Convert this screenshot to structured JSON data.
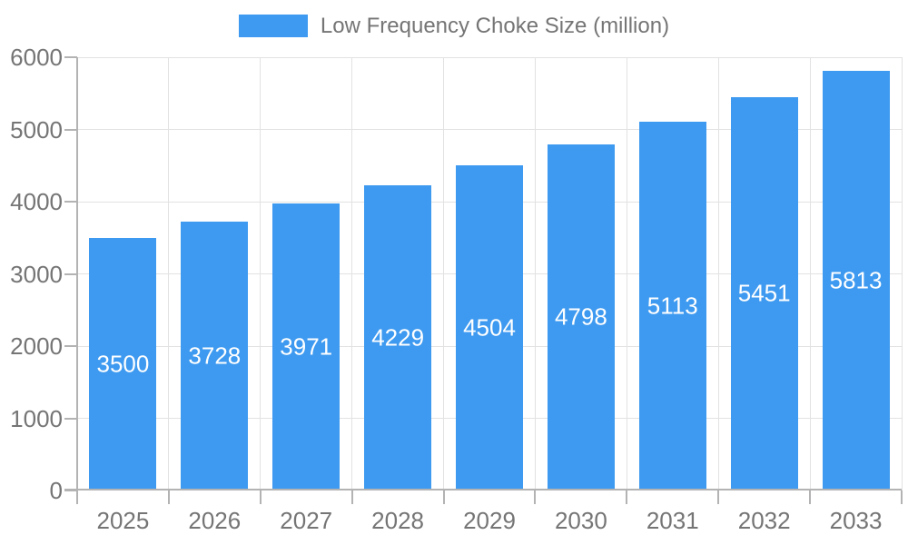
{
  "legend": {
    "label": "Low Frequency Choke Size (million)"
  },
  "chart_data": {
    "type": "bar",
    "title": "Low Frequency Choke Size (million)",
    "categories": [
      "2025",
      "2026",
      "2027",
      "2028",
      "2029",
      "2030",
      "2031",
      "2032",
      "2033"
    ],
    "values": [
      3500,
      3728,
      3971,
      4229,
      4504,
      4798,
      5113,
      5451,
      5813
    ],
    "series": [
      {
        "name": "Low Frequency Choke Size (million)",
        "values": [
          3500,
          3728,
          3971,
          4229,
          4504,
          4798,
          5113,
          5451,
          5813
        ]
      }
    ],
    "xlabel": "",
    "ylabel": "",
    "ylim": [
      0,
      6000
    ],
    "yticks": [
      0,
      1000,
      2000,
      3000,
      4000,
      5000,
      6000
    ],
    "grid": true,
    "legend_position": "top-center",
    "value_label_position": "inside-center",
    "colors": {
      "bar": "#3E9AF0",
      "grid": "#e2e2e2",
      "axis": "#b3b3b3",
      "tick_text": "#757575",
      "value_text": "#ffffff",
      "background": "#ffffff"
    }
  }
}
